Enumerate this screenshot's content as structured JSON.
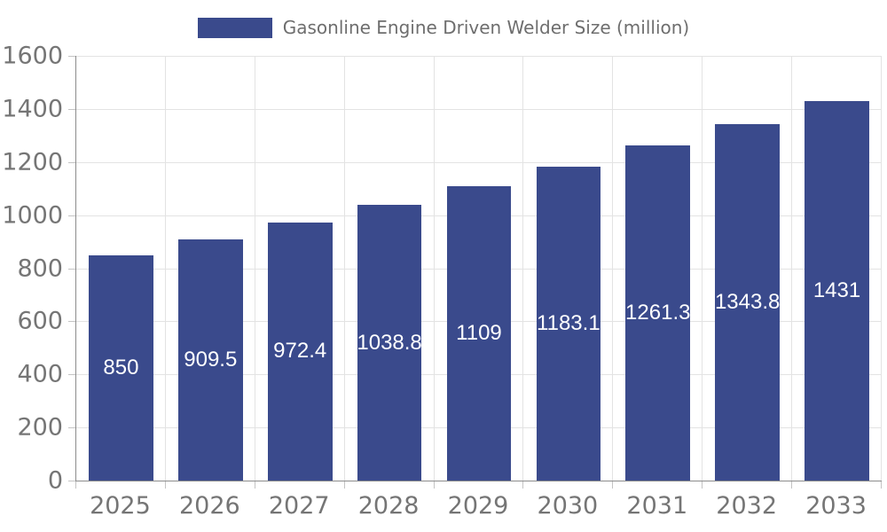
{
  "chart_data": {
    "type": "bar",
    "title": "Gasonline Engine Driven Welder Size (million)",
    "categories": [
      "2025",
      "2026",
      "2027",
      "2028",
      "2029",
      "2030",
      "2031",
      "2032",
      "2033"
    ],
    "series": [
      {
        "name": "Gasonline Engine Driven Welder Size (million)",
        "values": [
          850,
          909.5,
          972.4,
          1038.8,
          1109,
          1183.1,
          1261.3,
          1343.8,
          1431
        ]
      }
    ],
    "xlabel": "",
    "ylabel": "",
    "ylim": [
      0,
      1600
    ],
    "ytick_step": 200,
    "ytick_labels": [
      "0",
      "200",
      "400",
      "600",
      "800",
      "1000",
      "1200",
      "1400",
      "1600"
    ],
    "grid": true,
    "legend_position": "top-center",
    "value_labels": "inside-center",
    "colors": {
      "bar_color": "#3A4A8C",
      "axis_text": "#757575",
      "legend_text": "#6E6E6E",
      "value_text": "#FFFFFF",
      "grid": "#E3E3E3",
      "axis_line": "#8C8C8C",
      "tick": "#C4C4C4"
    }
  }
}
